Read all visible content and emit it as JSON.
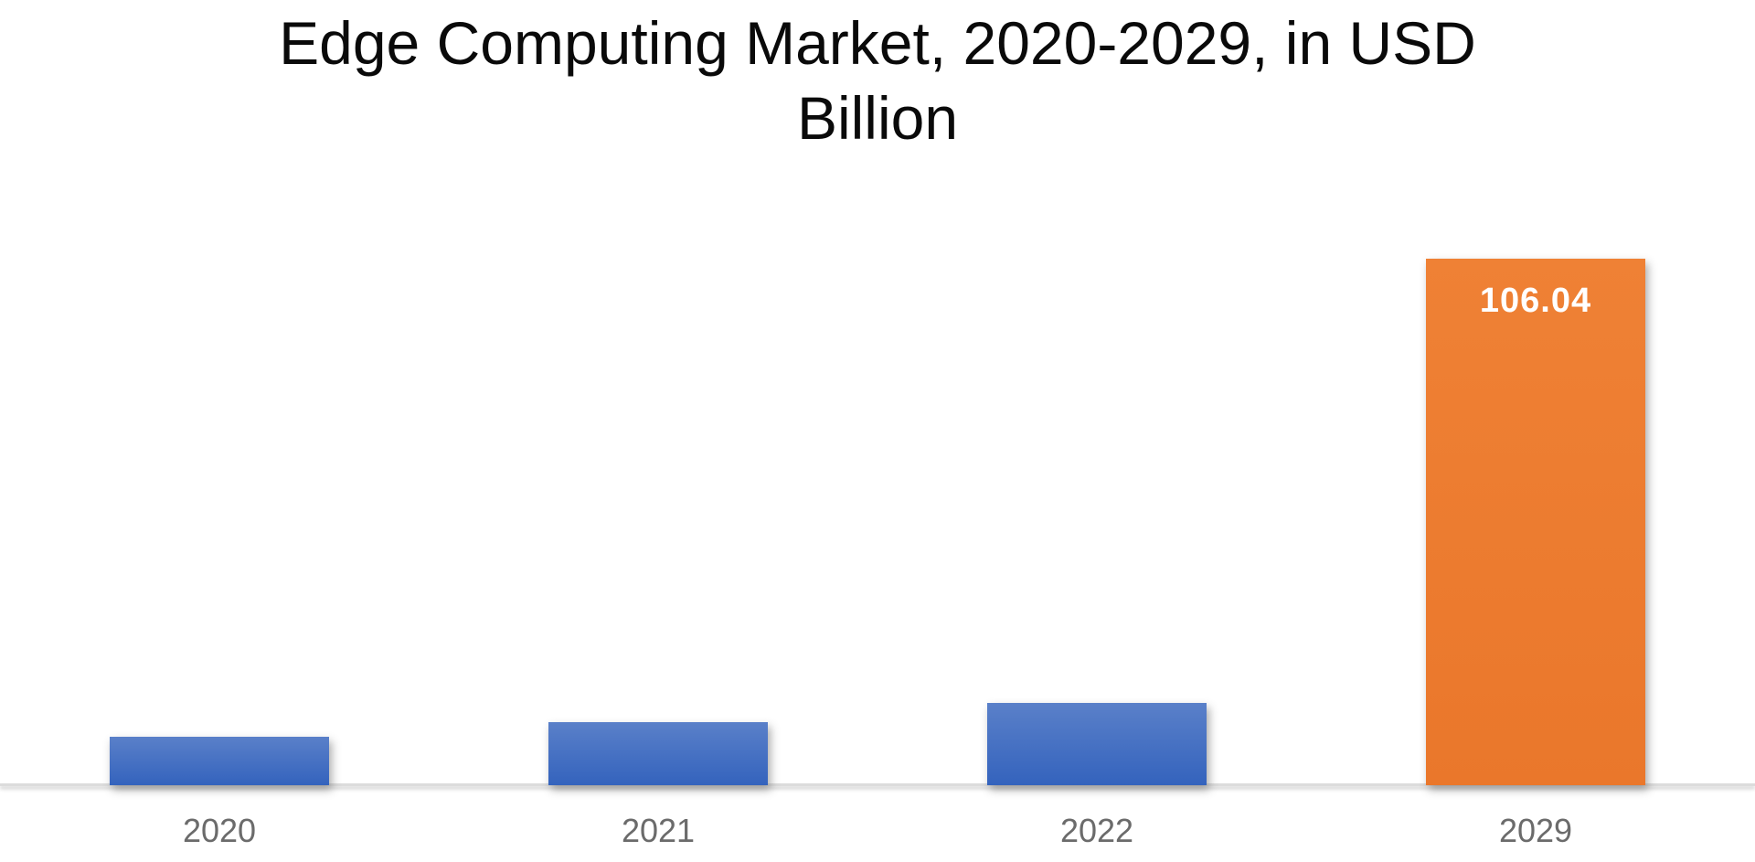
{
  "title": {
    "line1": "Edge Computing Market, 2020-2029, in USD",
    "line2": "Billion"
  },
  "chart_data": {
    "type": "bar",
    "title": "Edge Computing Market, 2020-2029, in USD Billion",
    "xlabel": "",
    "ylabel": "",
    "categories": [
      "2020",
      "2021",
      "2022",
      "2029"
    ],
    "values": [
      9.8,
      12.7,
      16.6,
      106.04
    ],
    "data_labels": [
      "",
      "",
      "",
      "106.04"
    ],
    "highlight_category": "2029",
    "ylim": [
      0,
      110
    ],
    "grid": false,
    "legend_position": "none",
    "axis": {
      "y_axis_visible": false,
      "x_axis_line_color": "#dcdcdc"
    },
    "colors": {
      "bar_default_top": "#5a80c9",
      "bar_default_bottom": "#3463bd",
      "bar_highlight_top": "#ef8135",
      "bar_highlight_bottom": "#ea772b",
      "data_label": "#ffffff",
      "tick_label": "#6b6b6b",
      "title": "#0a0a0a"
    }
  }
}
